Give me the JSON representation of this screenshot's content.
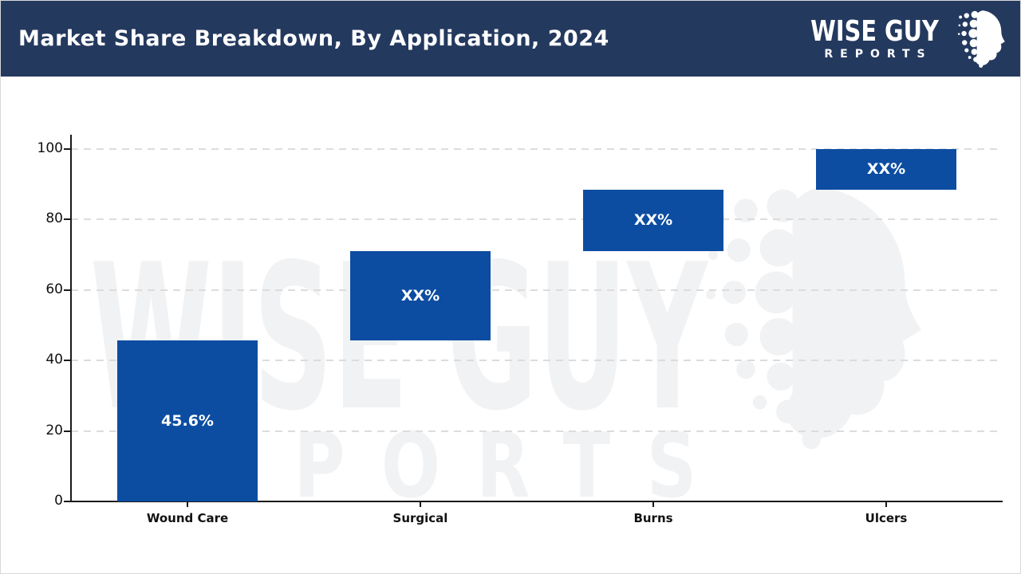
{
  "header": {
    "title": "Market Share Breakdown, By Application, 2024",
    "logo": {
      "brand_top": "WISE GUY",
      "brand_bottom": "REPORTS"
    }
  },
  "watermark": {
    "line1": "WISE GUY",
    "line2": "REPORTS"
  },
  "chart_data": {
    "type": "bar",
    "subtype": "waterfall",
    "title": "Market Share Breakdown, By Application, 2024",
    "categories": [
      "Wound Care",
      "Surgical",
      "Burns",
      "Ulcers"
    ],
    "bars": [
      {
        "category": "Wound Care",
        "start": 0,
        "end": 45.6,
        "label": "45.6%"
      },
      {
        "category": "Surgical",
        "start": 45.6,
        "end": 71.0,
        "label": "XX%"
      },
      {
        "category": "Burns",
        "start": 71.0,
        "end": 88.5,
        "label": "XX%"
      },
      {
        "category": "Ulcers",
        "start": 88.5,
        "end": 100,
        "label": "XX%"
      }
    ],
    "xlabel": "",
    "ylabel": "",
    "ylim": [
      0,
      100
    ],
    "yticks": [
      0,
      20,
      40,
      60,
      80,
      100
    ],
    "grid": "horizontal-dashed",
    "legend": "none",
    "bar_color": "#0c4da2",
    "bar_label_color": "#ffffff"
  },
  "colors": {
    "header_bg": "#24395e",
    "bar": "#0c4da2",
    "gridline": "#dcdcdc",
    "axis": "#1a1a1a",
    "watermark": "#f1f2f4"
  }
}
